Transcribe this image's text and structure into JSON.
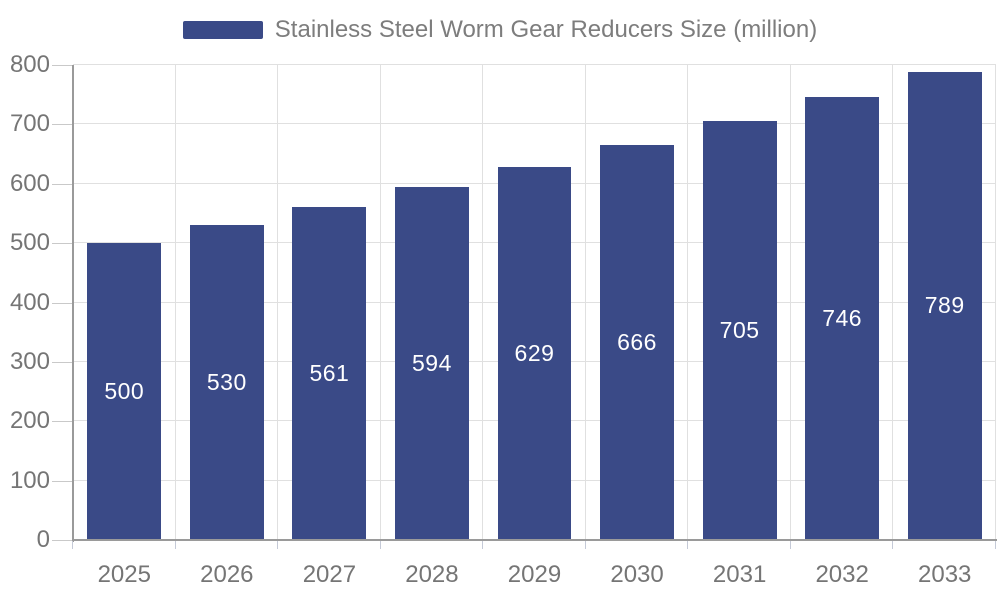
{
  "chart_data": {
    "type": "bar",
    "title": "Stainless Steel Worm Gear Reducers Size (million)",
    "series_name": "Stainless Steel Worm Gear Reducers Size (million)",
    "categories": [
      "2025",
      "2026",
      "2027",
      "2028",
      "2029",
      "2030",
      "2031",
      "2032",
      "2033"
    ],
    "values": [
      500,
      530,
      561,
      594,
      629,
      666,
      705,
      746,
      789
    ],
    "xlabel": "",
    "ylabel": "",
    "ylim": [
      0,
      800
    ],
    "y_ticks": [
      0,
      100,
      200,
      300,
      400,
      500,
      600,
      700,
      800
    ],
    "grid": true,
    "legend_position": "top",
    "legend": {
      "label": "Stainless Steel Worm Gear Reducers Size (million)",
      "swatch_color": "#3a4a87"
    },
    "colors": {
      "bar": "#3a4a87",
      "bar_label": "#ffffff",
      "axis_line": "#9a9a9a",
      "grid_line": "#e0e0e0",
      "y_tick_line": "#c9c9c9",
      "x_tick_line": "#c5cad7",
      "axis_text": "#757575",
      "legend_text": "#7d7d7d"
    }
  }
}
